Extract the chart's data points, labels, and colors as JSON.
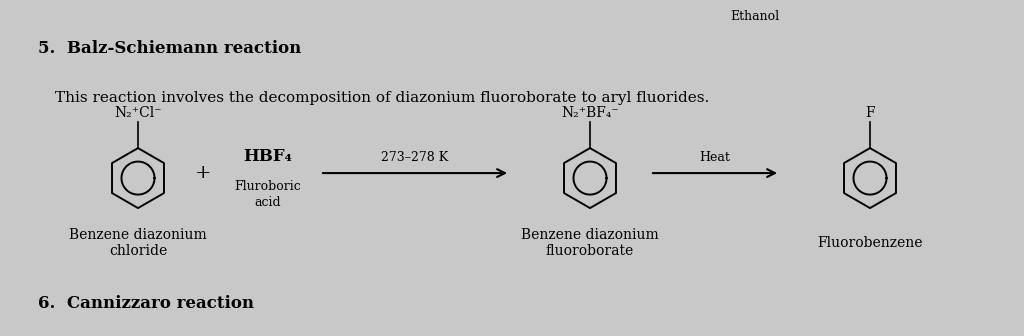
{
  "background_color": "#c8c8c8",
  "title_text": "5.  Balz-Schiemann reaction",
  "subtitle": "This reaction involves the decomposition of diazonium fluoroborate to aryl fluorides.",
  "top_right_text": "Ethanol",
  "title_fontsize": 12,
  "subtitle_fontsize": 11,
  "label_fontsize": 10,
  "caption_fontsize": 10,
  "small_fontsize": 9,
  "hbf4_fontsize": 12,
  "benzene1_label_top": "N₂⁺Cl⁻",
  "benzene1_caption1": "Benzene diazonium",
  "benzene1_caption2": "chloride",
  "hbf4_line1": "HBF₄",
  "hbf4_line2": "Fluroboric",
  "hbf4_line3": "acid",
  "arrow1_label": "273–278 K",
  "benzene2_label_top": "N₂⁺BF₄⁻",
  "benzene2_caption1": "Benzene diazonium",
  "benzene2_caption2": "fluoroborate",
  "arrow2_label": "Heat",
  "benzene3_label_top": "F",
  "benzene3_caption": "Fluorobenzene",
  "footer_text": "6.  Cannizzaro reaction",
  "footer_fontsize": 12
}
